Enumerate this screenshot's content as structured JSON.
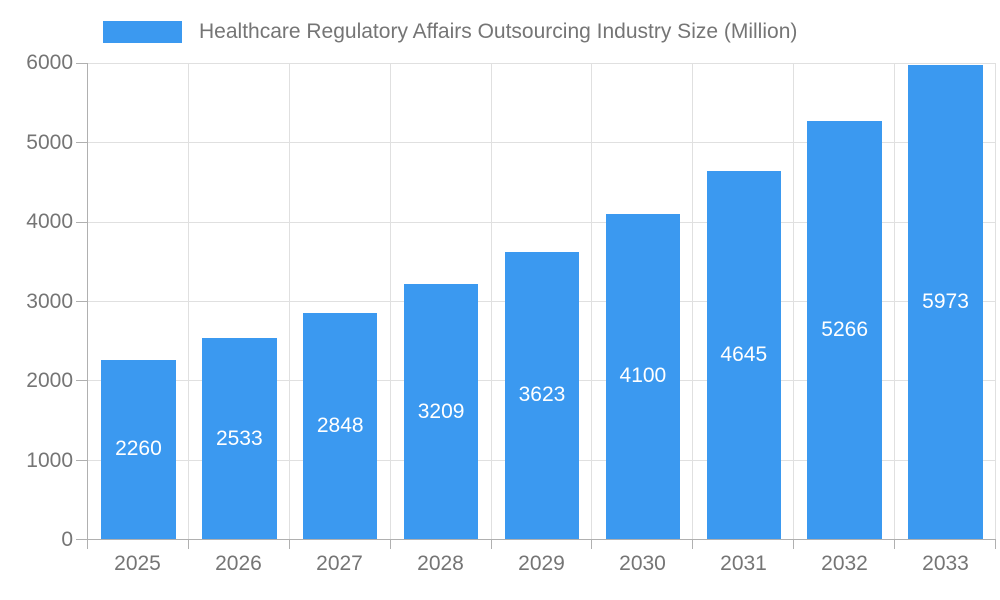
{
  "legend": {
    "label": "Healthcare Regulatory Affairs Outsourcing Industry Size (Million)"
  },
  "colors": {
    "bar": "#3B99F0",
    "grid": "#e0e0e0",
    "axis": "#b0b0b0",
    "tick_text": "#757575",
    "value_label": "#ffffff",
    "background": "#ffffff"
  },
  "chart_data": {
    "type": "bar",
    "title": "Healthcare Regulatory Affairs Outsourcing Industry Size (Million)",
    "categories": [
      "2025",
      "2026",
      "2027",
      "2028",
      "2029",
      "2030",
      "2031",
      "2032",
      "2033"
    ],
    "values": [
      2260,
      2533,
      2848,
      3209,
      3623,
      4100,
      4645,
      5266,
      5973
    ],
    "xlabel": "",
    "ylabel": "",
    "ylim": [
      0,
      6000
    ],
    "yticks": [
      0,
      1000,
      2000,
      3000,
      4000,
      5000,
      6000
    ],
    "grid": true,
    "legend_position": "top",
    "value_labels": "inside-center"
  }
}
